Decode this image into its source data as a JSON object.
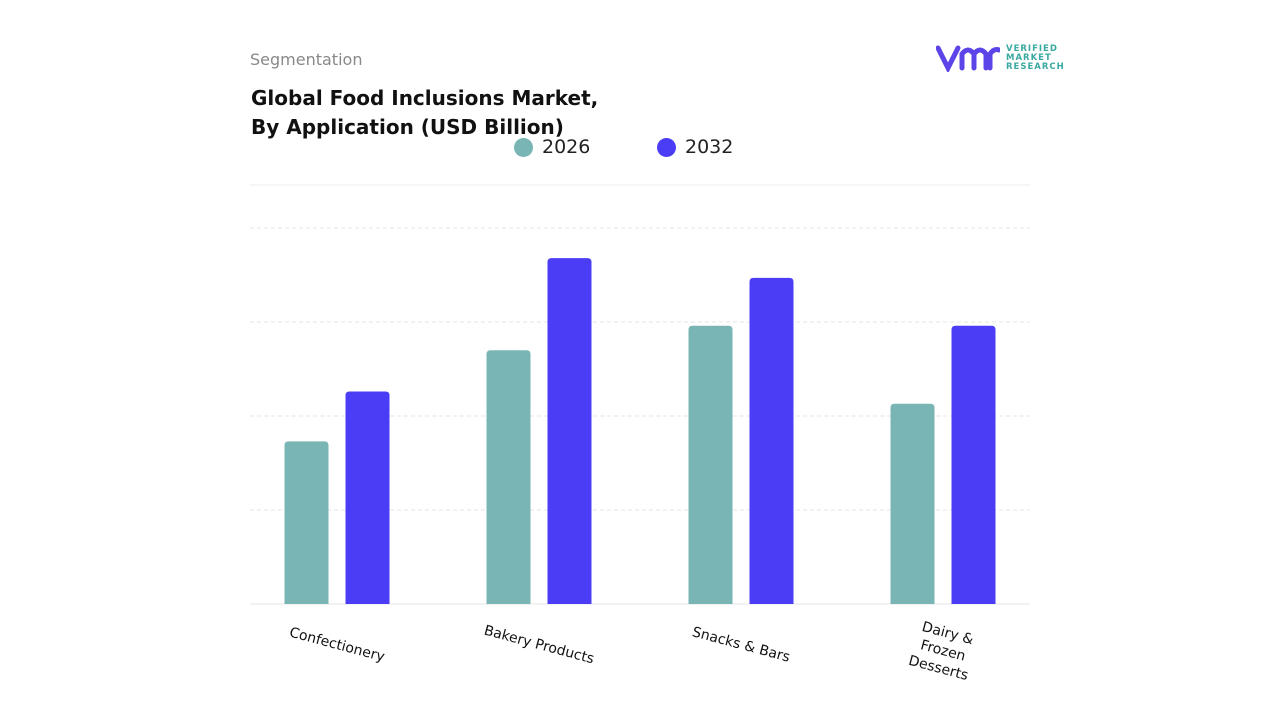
{
  "header": {
    "section": "Segmentation",
    "logo": {
      "line1": "VERIFIED",
      "line2": "MARKET",
      "line3": "RESEARCH"
    }
  },
  "chart_data": {
    "type": "bar",
    "title": "Global Food Inclusions Market,",
    "subtitle": "By Application (USD Billion)",
    "categories": [
      "Confectionery",
      "Bakery Products",
      "Snacks & Bars",
      "Dairy & Frozen Desserts"
    ],
    "series": [
      {
        "name": "2026",
        "color": "#7ab5b5",
        "values": [
          1.73,
          2.7,
          2.96,
          2.13
        ]
      },
      {
        "name": "2032",
        "color": "#4b3cf5",
        "values": [
          2.26,
          3.68,
          3.47,
          2.96
        ]
      }
    ],
    "ylim": [
      0,
      4.5
    ],
    "yticks": [
      1,
      2,
      3,
      4
    ],
    "grid": true
  }
}
